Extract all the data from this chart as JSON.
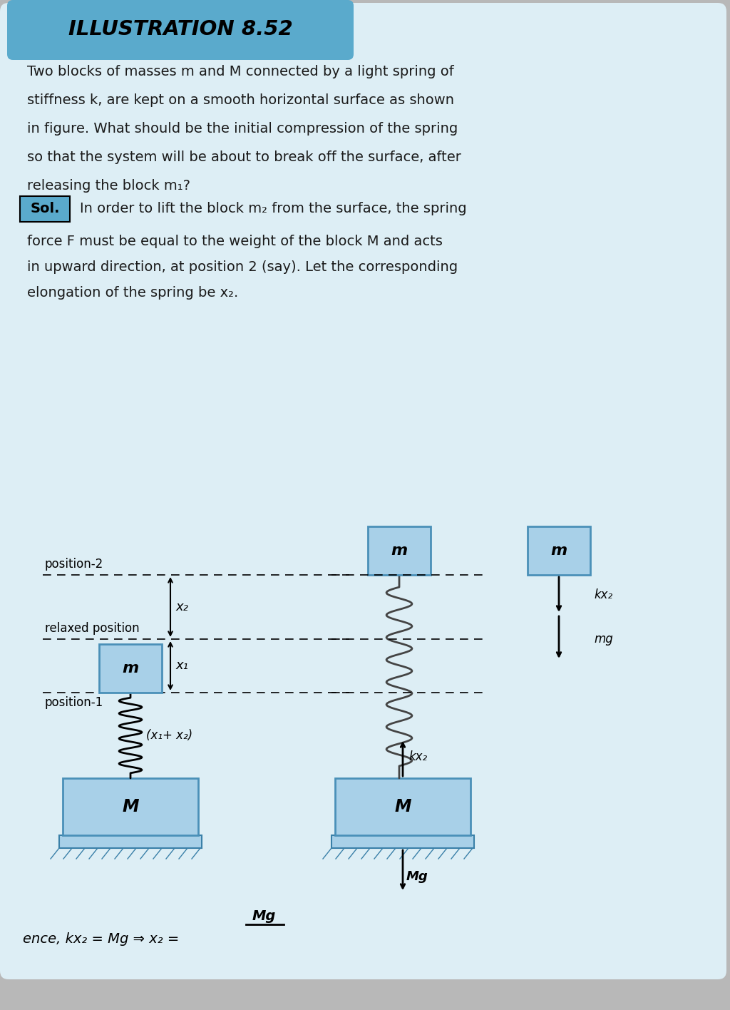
{
  "title": "ILLUSTRATION 8.52",
  "title_bg_color": "#5aaacc",
  "bg_color": "#ddeef5",
  "page_bg": "#b8b8b8",
  "block_color": "#a8d0e8",
  "block_edge": "#4a90b8",
  "text_color": "#1a1a1a",
  "ground_color": "#a8d0e8",
  "problem_text_lines": [
    "Two blocks of masses m and M connected by a light spring of",
    "stiffness k, are kept on a smooth horizontal surface as shown",
    "in figure. What should be the initial compression of the spring",
    "so that the system will be about to break off the surface, after",
    "releasing the block m₁?"
  ],
  "sol_text_lines": [
    "In order to lift the block m₂ from the surface, the spring",
    "force F must be equal to the weight of the block M and acts",
    "in upward direction, at position 2 (say). Let the corresponding",
    "elongation of the spring be x₂."
  ],
  "bottom_text": "ence, kx₂ = Mg ⇒ x₂ =",
  "bottom_frac_num": "Mg",
  "pos2_label": "position-2",
  "relaxed_label": "relaxed position",
  "pos1_label": "position-1",
  "x1_label": "x₁",
  "x2_label": "x₂",
  "x1x2_label": "(x₁+ x₂)",
  "kx2_label": "kx₂",
  "mg_label": "mg",
  "Mg_label": "Mg",
  "m_label": "m",
  "M_label": "M"
}
